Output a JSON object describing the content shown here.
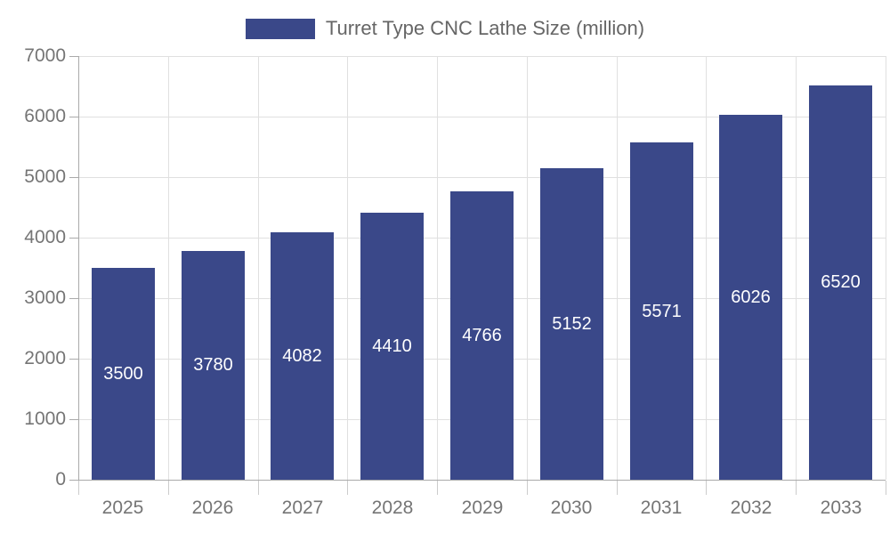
{
  "chart_data": {
    "type": "bar",
    "title": "Turret Type CNC Lathe Size (million)",
    "series": [
      {
        "name": "Turret Type CNC Lathe Size (million)",
        "values": [
          3500,
          3780,
          4082,
          4410,
          4766,
          5152,
          5571,
          6026,
          6520
        ]
      }
    ],
    "categories": [
      "2025",
      "2026",
      "2027",
      "2028",
      "2029",
      "2030",
      "2031",
      "2032",
      "2033"
    ],
    "value_labels": [
      "3500",
      "3780",
      "4082",
      "4410",
      "4766",
      "5152",
      "5571",
      "6026",
      "6520"
    ],
    "xlabel": "",
    "ylabel": "",
    "ylim": [
      0,
      7000
    ],
    "y_ticks": [
      0,
      1000,
      2000,
      3000,
      4000,
      5000,
      6000,
      7000
    ],
    "y_tick_labels": [
      "0",
      "1000",
      "2000",
      "3000",
      "4000",
      "5000",
      "6000",
      "7000"
    ],
    "grid": true,
    "legend_position": "top-center",
    "value_label_position": "inside-center",
    "colors": {
      "bar": "#3A4889",
      "value_label": "#ffffff",
      "axis_text": "#757575",
      "legend_text": "#666666",
      "gridline": "#e0e0e0",
      "axis_line": "#aaaaaa",
      "x_tick": "#cccccc",
      "background": "#ffffff"
    }
  }
}
